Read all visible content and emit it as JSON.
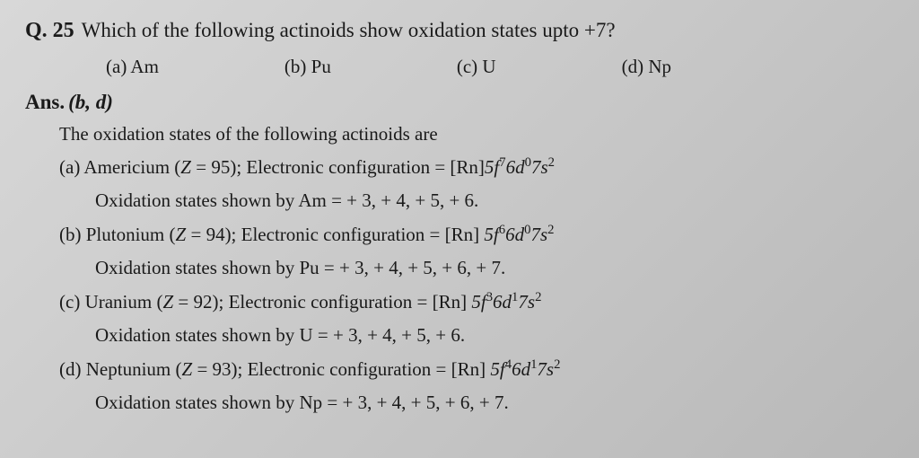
{
  "question": {
    "prefix": "Q.",
    "number": "25",
    "text": "Which of the following actinoids show oxidation states upto +7?"
  },
  "options": {
    "a": {
      "label": "(a)",
      "value": "Am"
    },
    "b": {
      "label": "(b)",
      "value": "Pu"
    },
    "c": {
      "label": "(c)",
      "value": "U"
    },
    "d": {
      "label": "(d)",
      "value": "Np"
    }
  },
  "answer": {
    "prefix": "Ans.",
    "value": "(b, d)"
  },
  "explanation": {
    "intro": "The oxidation states of the following actinoids are",
    "items": {
      "a": {
        "label": "(a)",
        "name": "Americium",
        "z_label": "Z",
        "z_value": "95",
        "config_prefix": "Electronic configuration =",
        "config_core": "[Rn]",
        "cfg_5f": "5f",
        "cfg_5f_sup": "7",
        "cfg_6d": "6d",
        "cfg_6d_sup": "0",
        "cfg_7s": "7s",
        "cfg_7s_sup": "2",
        "ox_prefix": "Oxidation states shown by",
        "ox_symbol": "Am",
        "ox_values": "= + 3, + 4, + 5, + 6."
      },
      "b": {
        "label": "(b)",
        "name": "Plutonium",
        "z_label": "Z",
        "z_value": "94",
        "config_prefix": "Electronic configuration =",
        "config_core": "[Rn]",
        "cfg_5f": "5f",
        "cfg_5f_sup": "6",
        "cfg_6d": "6d",
        "cfg_6d_sup": "0",
        "cfg_7s": "7s",
        "cfg_7s_sup": "2",
        "ox_prefix": "Oxidation states shown by",
        "ox_symbol": "Pu",
        "ox_values": "= + 3, + 4, + 5, + 6, + 7."
      },
      "c": {
        "label": "(c)",
        "name": "Uranium",
        "z_label": "Z",
        "z_value": "92",
        "config_prefix": "Electronic configuration =",
        "config_core": "[Rn]",
        "cfg_5f": "5f",
        "cfg_5f_sup": "3",
        "cfg_6d": "6d",
        "cfg_6d_sup": "1",
        "cfg_7s": "7s",
        "cfg_7s_sup": "2",
        "ox_prefix": "Oxidation states shown by",
        "ox_symbol": "U",
        "ox_values": "= + 3, + 4, + 5, + 6."
      },
      "d": {
        "label": "(d)",
        "name": "Neptunium",
        "z_label": "Z",
        "z_value": "93",
        "config_prefix": "Electronic configuration =",
        "config_core": "[Rn]",
        "cfg_5f": "5f",
        "cfg_5f_sup": "4",
        "cfg_6d": "6d",
        "cfg_6d_sup": "1",
        "cfg_7s": "7s",
        "cfg_7s_sup": "2",
        "ox_prefix": "Oxidation states shown by",
        "ox_symbol": "Np",
        "ox_values": "= + 3, + 4, + 5, + 6, + 7."
      }
    }
  },
  "colors": {
    "background_start": "#d8d8d8",
    "background_end": "#b8b8b8",
    "text": "#1a1a1a"
  },
  "typography": {
    "question_fontsize": 23,
    "body_fontsize": 21,
    "font_family": "Georgia, Times New Roman, serif"
  }
}
